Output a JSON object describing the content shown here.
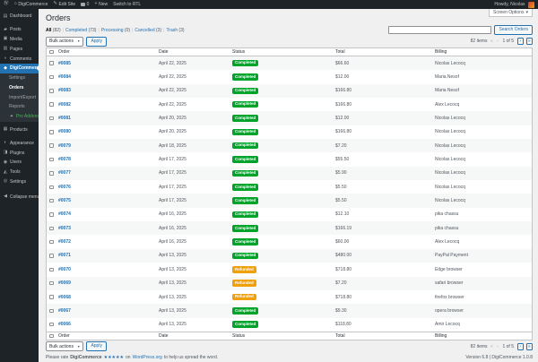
{
  "colors": {
    "accent_blue": "#2271b1",
    "admin_dark": "#1d2327",
    "submenu_dark": "#2c3338",
    "content_bg": "#f0f0f1",
    "row_alt_bg": "#f6f7f7",
    "completed_green": "#00a32a",
    "refunded_orange": "#f0a009",
    "pro_addons_green": "#46b450"
  },
  "icons": {
    "wordpress-logo-icon": "Ⓦ",
    "home-icon": "⌂",
    "pencil-icon": "✎",
    "plus-icon": "+",
    "caret-down": "▾",
    "select-caret": "▼",
    "dashboard-icon": "▤",
    "posts-icon": "▰",
    "media-icon": "▣",
    "pages-icon": "▥",
    "comments-icon": "◗",
    "digicommerce-icon": "◆",
    "products-icon": "▦",
    "appearance-icon": "◐",
    "plugins-icon": "◨",
    "users-icon": "◉",
    "tools-icon": "◭",
    "settings-icon": "◎",
    "collapse-icon": "◀",
    "pro-addons-icon": "✦",
    "star-rating": "★★★★★"
  },
  "admin_bar": {
    "site_name": "DigiCommerce",
    "edit_site": "Edit Site",
    "comments_count": "0",
    "new_label": "New",
    "rtl_label": "Switch to RTL",
    "howdy": "Howdy, Nicolas"
  },
  "sidebar": {
    "items": [
      {
        "label": "Dashboard",
        "icon": "dashboard-icon",
        "type": "item",
        "sep_after": true
      },
      {
        "label": "Posts",
        "icon": "posts-icon",
        "type": "item"
      },
      {
        "label": "Media",
        "icon": "media-icon",
        "type": "item"
      },
      {
        "label": "Pages",
        "icon": "pages-icon",
        "type": "item"
      },
      {
        "label": "Comments",
        "icon": "comments-icon",
        "type": "item"
      },
      {
        "label": "DigiCommerce",
        "icon": "digicommerce-icon",
        "type": "active"
      },
      {
        "label": "Settings",
        "type": "sub"
      },
      {
        "label": "Orders",
        "type": "sub-current"
      },
      {
        "label": "Import/Export",
        "type": "sub"
      },
      {
        "label": "Reports",
        "type": "sub"
      },
      {
        "label": "Pro Addons",
        "icon": "pro-addons-icon",
        "type": "sub-pro",
        "sep_after": true
      },
      {
        "label": "Products",
        "icon": "products-icon",
        "type": "item",
        "sep_after": true
      },
      {
        "label": "Appearance",
        "icon": "appearance-icon",
        "type": "item"
      },
      {
        "label": "Plugins",
        "icon": "plugins-icon",
        "type": "item"
      },
      {
        "label": "Users",
        "icon": "users-icon",
        "type": "item"
      },
      {
        "label": "Tools",
        "icon": "tools-icon",
        "type": "item"
      },
      {
        "label": "Settings",
        "icon": "settings-icon",
        "type": "item"
      },
      {
        "label": "Collapse menu",
        "icon": "collapse-icon",
        "type": "collapse"
      }
    ]
  },
  "page": {
    "title": "Orders",
    "screen_options_label": "Screen Options",
    "filters": [
      {
        "label": "All",
        "count": "(82)",
        "active": true
      },
      {
        "label": "Completed",
        "count": "(73)"
      },
      {
        "label": "Processing",
        "count": "(0)"
      },
      {
        "label": "Cancelled",
        "count": "(3)"
      },
      {
        "label": "Trash",
        "count": "(3)"
      }
    ],
    "search_button_label": "Search Orders",
    "bulk_actions_label": "Bulk actions",
    "apply_label": "Apply",
    "pagination": {
      "items_text": "82 items",
      "first": "«",
      "prev": "‹",
      "current_text": "1 of 5",
      "next": "›",
      "last": "»"
    }
  },
  "table": {
    "columns": {
      "order": "Order",
      "date": "Date",
      "status": "Status",
      "total": "Total",
      "billing": "Billing"
    },
    "rows": [
      {
        "id": "#0085",
        "date": "April 22, 2025",
        "status": "Completed",
        "total": "$66.60",
        "billing": "Nicolas Lecocq"
      },
      {
        "id": "#0084",
        "date": "April 22, 2025",
        "status": "Completed",
        "total": "$12.00",
        "billing": "Maria Nesof"
      },
      {
        "id": "#0083",
        "date": "April 22, 2025",
        "status": "Completed",
        "total": "$166.80",
        "billing": "Maria Nesof"
      },
      {
        "id": "#0082",
        "date": "April 22, 2025",
        "status": "Completed",
        "total": "$166.80",
        "billing": "Alex Lecocq"
      },
      {
        "id": "#0081",
        "date": "April 20, 2025",
        "status": "Completed",
        "total": "$12.00",
        "billing": "Nicolas Lecocq"
      },
      {
        "id": "#0080",
        "date": "April 20, 2025",
        "status": "Completed",
        "total": "$166.80",
        "billing": "Nicolas Lecocq"
      },
      {
        "id": "#0079",
        "date": "April 18, 2025",
        "status": "Completed",
        "total": "$7.20",
        "billing": "Nicolas Lecocq"
      },
      {
        "id": "#0078",
        "date": "April 17, 2025",
        "status": "Completed",
        "total": "$55.50",
        "billing": "Nicolas Lecocq"
      },
      {
        "id": "#0077",
        "date": "April 17, 2025",
        "status": "Completed",
        "total": "$5.90",
        "billing": "Nicolas Lecocq"
      },
      {
        "id": "#0076",
        "date": "April 17, 2025",
        "status": "Completed",
        "total": "$5.50",
        "billing": "Nicolas Lecocq"
      },
      {
        "id": "#0075",
        "date": "April 17, 2025",
        "status": "Completed",
        "total": "$5.50",
        "billing": "Nicolas Lecocq"
      },
      {
        "id": "#0074",
        "date": "April 16, 2025",
        "status": "Completed",
        "total": "$12.10",
        "billing": "pika chassu"
      },
      {
        "id": "#0073",
        "date": "April 16, 2025",
        "status": "Completed",
        "total": "$166.19",
        "billing": "pika chassu"
      },
      {
        "id": "#0072",
        "date": "April 16, 2025",
        "status": "Completed",
        "total": "$60.00",
        "billing": "Alex Lecocq"
      },
      {
        "id": "#0071",
        "date": "April 13, 2025",
        "status": "Completed",
        "total": "$480.00",
        "billing": "PayPal Payment"
      },
      {
        "id": "#0070",
        "date": "April 13, 2025",
        "status": "Refunded",
        "total": "$718.80",
        "billing": "Edge browser"
      },
      {
        "id": "#0069",
        "date": "April 13, 2025",
        "status": "Refunded",
        "total": "$7.20",
        "billing": "safari browser"
      },
      {
        "id": "#0068",
        "date": "April 13, 2025",
        "status": "Refunded",
        "total": "$718.80",
        "billing": "firefox browser"
      },
      {
        "id": "#0067",
        "date": "April 13, 2025",
        "status": "Completed",
        "total": "$9.30",
        "billing": "opera browser"
      },
      {
        "id": "#0066",
        "date": "April 13, 2025",
        "status": "Completed",
        "total": "$118.80",
        "billing": "Amir Lecocq"
      }
    ]
  },
  "footer": {
    "rate_pre": "Please rate",
    "plugin_name": "DigiCommerce",
    "rate_mid": "on",
    "rate_link": "WordPress.org",
    "rate_post": "to help us spread the word.",
    "version_text": "Version 6.8 | DigiCommerce 1.0.8"
  }
}
